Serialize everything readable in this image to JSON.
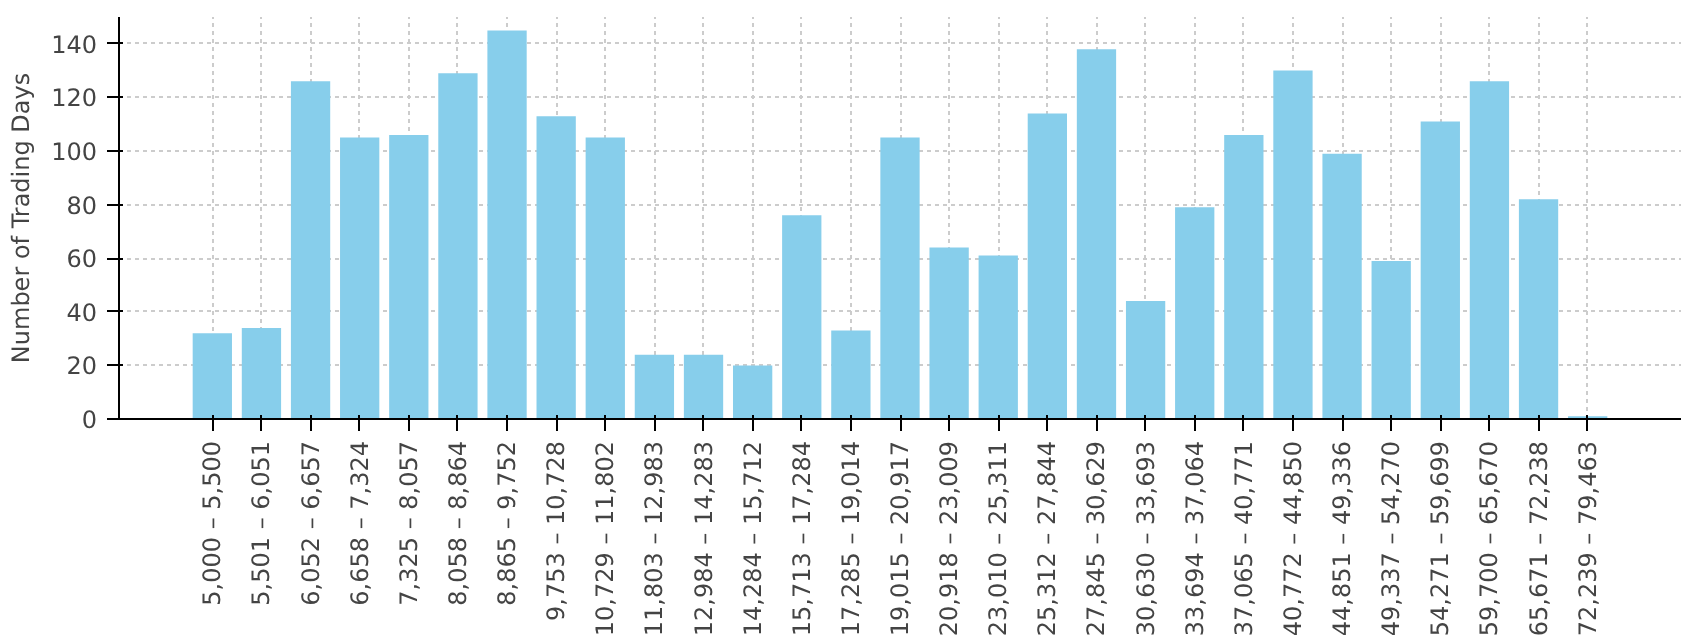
{
  "chart_data": {
    "type": "bar",
    "ylabel": "Number of Trading Days",
    "categories": [
      "5,000 – 5,500",
      "5,501 – 6,051",
      "6,052 – 6,657",
      "6,658 – 7,324",
      "7,325 – 8,057",
      "8,058 – 8,864",
      "8,865 – 9,752",
      "9,753 – 10,728",
      "10,729 – 11,802",
      "11,803 – 12,983",
      "12,984 – 14,283",
      "14,284 – 15,712",
      "15,713 – 17,284",
      "17,285 – 19,014",
      "19,015 – 20,917",
      "20,918 – 23,009",
      "23,010 – 25,311",
      "25,312 – 27,844",
      "27,845 – 30,629",
      "30,630 – 33,693",
      "33,694 – 37,064",
      "37,065 – 40,771",
      "40,772 – 44,850",
      "44,851 – 49,336",
      "49,337 – 54,270",
      "54,271 – 59,699",
      "59,700 – 65,670",
      "65,671 – 72,238",
      "72,239 – 79,463"
    ],
    "values": [
      32,
      34,
      126,
      105,
      106,
      129,
      145,
      113,
      105,
      24,
      24,
      20,
      76,
      33,
      105,
      64,
      61,
      114,
      138,
      44,
      79,
      106,
      130,
      99,
      59,
      111,
      126,
      82,
      1
    ],
    "color": "#87ceeb",
    "ylim": [
      0,
      150
    ],
    "yticks": [
      0,
      20,
      40,
      60,
      80,
      100,
      120,
      140
    ],
    "grid": true
  }
}
